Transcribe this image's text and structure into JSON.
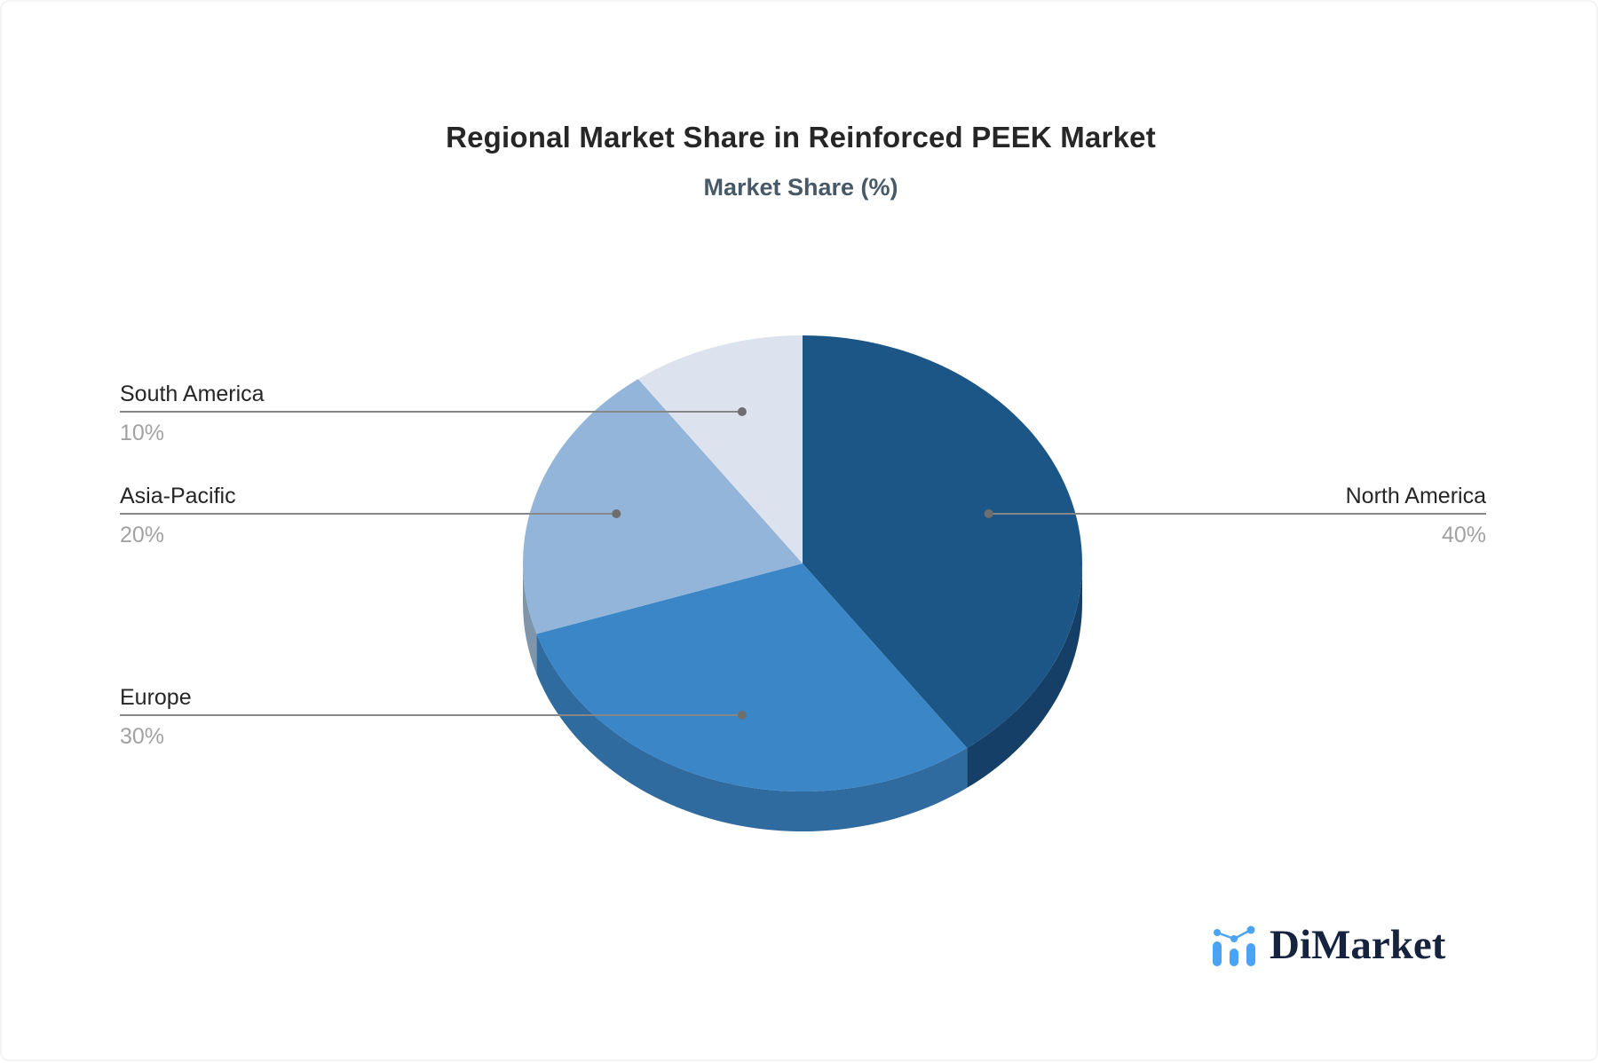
{
  "chart_data": {
    "type": "pie",
    "style": "3d",
    "title": "Regional Market Share in Reinforced PEEK Market",
    "subtitle": "Market Share (%)",
    "unit": "%",
    "start_angle": "12-oclock-clockwise",
    "slices": [
      {
        "label": "North America",
        "value": 40,
        "color": "#1B5687",
        "side_color": "#153F66"
      },
      {
        "label": "Europe",
        "value": 30,
        "color": "#3A86C7",
        "side_color": "#2F6B9E"
      },
      {
        "label": "Asia-Pacific",
        "value": 20,
        "color": "#93B5D9",
        "side_color": "#7F95A9"
      },
      {
        "label": "South America",
        "value": 10,
        "color": "#DCE3EE",
        "side_color": "#C2CBDC"
      }
    ],
    "label_text_color": "#262626",
    "label_pct_color": "#A2A2A2",
    "leader_line_color": "#878787",
    "leader_dot_color": "#6E6E6E"
  },
  "branding": {
    "logo_text": "DiMarket",
    "logo_icon_color": "#4BA3F3"
  }
}
